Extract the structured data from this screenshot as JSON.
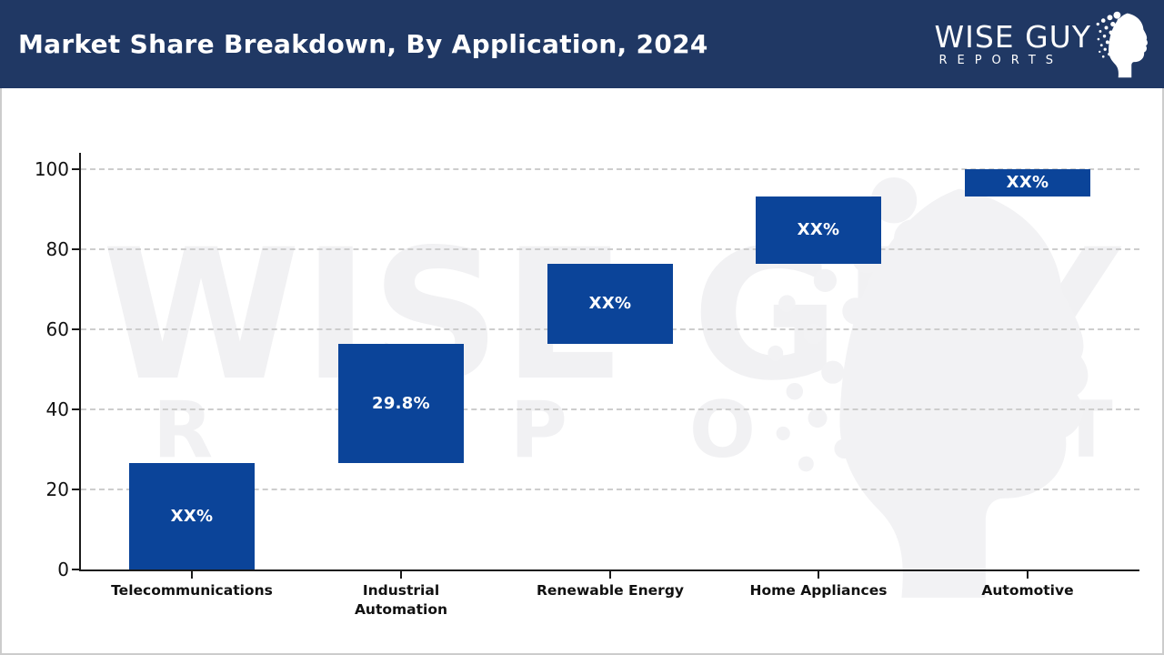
{
  "header": {
    "title": "Market Share Breakdown, By Application, 2024",
    "bg_color": "#203864",
    "logo": {
      "line1": "WISE GUY",
      "line2": "REPORTS"
    }
  },
  "watermark": {
    "line1": "WISE GUY",
    "line2": "R E P O R T S"
  },
  "chart_data": {
    "type": "bar",
    "subtype": "waterfall",
    "title": "Market Share Breakdown, By Application, 2024",
    "xlabel": "",
    "ylabel": "",
    "ylim": [
      0,
      100
    ],
    "yticks": [
      0,
      20,
      40,
      60,
      80,
      100
    ],
    "grid": "horizontal-dashed",
    "legend": "none",
    "bar_color": "#0b4499",
    "label_color": "#ffffff",
    "categories": [
      "Telecommunications",
      "Industrial Automation",
      "Renewable Energy",
      "Home Appliances",
      "Automotive"
    ],
    "bars": [
      {
        "category": "Telecommunications",
        "tick_label": "Telecommunications",
        "start": 0,
        "end": 26.6,
        "value": 26.6,
        "label": "XX%"
      },
      {
        "category": "Industrial Automation",
        "tick_label": "Industrial\nAutomation",
        "start": 26.6,
        "end": 56.4,
        "value": 29.8,
        "label": "29.8%"
      },
      {
        "category": "Renewable Energy",
        "tick_label": "Renewable Energy",
        "start": 56.4,
        "end": 76.4,
        "value": 20.0,
        "label": "XX%"
      },
      {
        "category": "Home Appliances",
        "tick_label": "Home Appliances",
        "start": 76.4,
        "end": 93.2,
        "value": 16.8,
        "label": "XX%"
      },
      {
        "category": "Automotive",
        "tick_label": "Automotive",
        "start": 93.2,
        "end": 100,
        "value": 6.8,
        "label": "XX%"
      }
    ]
  }
}
